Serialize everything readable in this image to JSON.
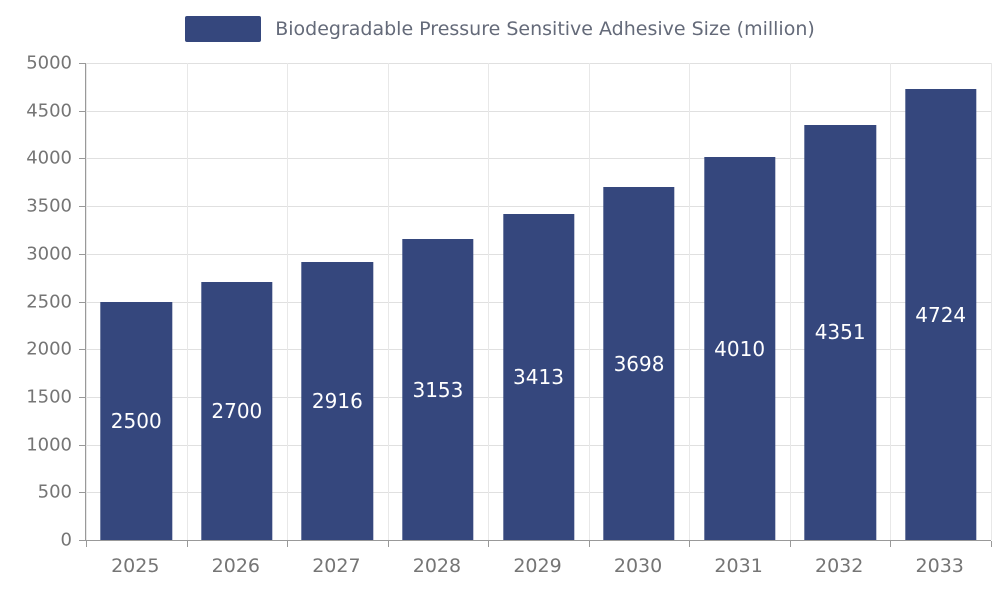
{
  "chart_data": {
    "type": "bar",
    "title": "Biodegradable Pressure Sensitive Adhesive Size (million)",
    "categories": [
      "2025",
      "2026",
      "2027",
      "2028",
      "2029",
      "2030",
      "2031",
      "2032",
      "2033"
    ],
    "values": [
      2500,
      2700,
      2916,
      3153,
      3413,
      3698,
      4010,
      4351,
      4724
    ],
    "xlabel": "",
    "ylabel": "",
    "ylim": [
      0,
      5000
    ],
    "ytick_step": 500,
    "y_ticks": [
      "0",
      "500",
      "1000",
      "1500",
      "2000",
      "2500",
      "3000",
      "3500",
      "4000",
      "4500",
      "5000"
    ],
    "grid": true,
    "legend_position": "top",
    "bar_color": "#35477d",
    "label_color": "#ffffff",
    "axis_text_color": "#757575"
  },
  "legend": {
    "label": "Biodegradable Pressure Sensitive Adhesive Size (million)"
  }
}
